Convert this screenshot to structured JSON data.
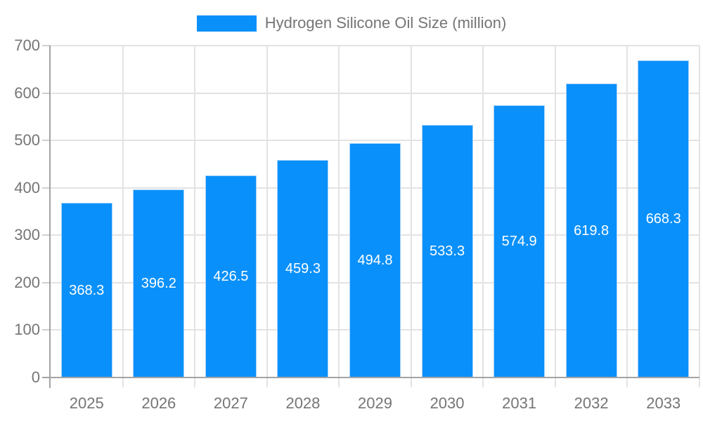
{
  "chart_data": {
    "type": "bar",
    "title": "Hydrogen Silicone Oil Size (million)",
    "legend": [
      "Hydrogen Silicone Oil Size (million)"
    ],
    "legend_position": "top-center",
    "categories": [
      "2025",
      "2026",
      "2027",
      "2028",
      "2029",
      "2030",
      "2031",
      "2032",
      "2033"
    ],
    "series": [
      {
        "name": "Hydrogen Silicone Oil Size (million)",
        "values": [
          368.3,
          396.2,
          426.5,
          459.3,
          494.8,
          533.3,
          574.9,
          619.8,
          668.3
        ]
      }
    ],
    "value_labels": [
      "368.3",
      "396.2",
      "426.5",
      "459.3",
      "494.8",
      "533.3",
      "574.9",
      "619.8",
      "668.3"
    ],
    "value_label_position": "inside-center",
    "xlabel": "",
    "ylabel": "",
    "ylim": [
      0,
      700
    ],
    "yticks": [
      0,
      100,
      200,
      300,
      400,
      500,
      600,
      700
    ],
    "grid": true,
    "colors": {
      "bar": "#0a90fa",
      "bar_border": "#a6d3fb",
      "grid": "#e3e3e3",
      "axis": "#a3a3a3",
      "tick": "#cfcfcf",
      "text": "#757575",
      "value_text": "#ffffff",
      "background": "#ffffff"
    }
  }
}
